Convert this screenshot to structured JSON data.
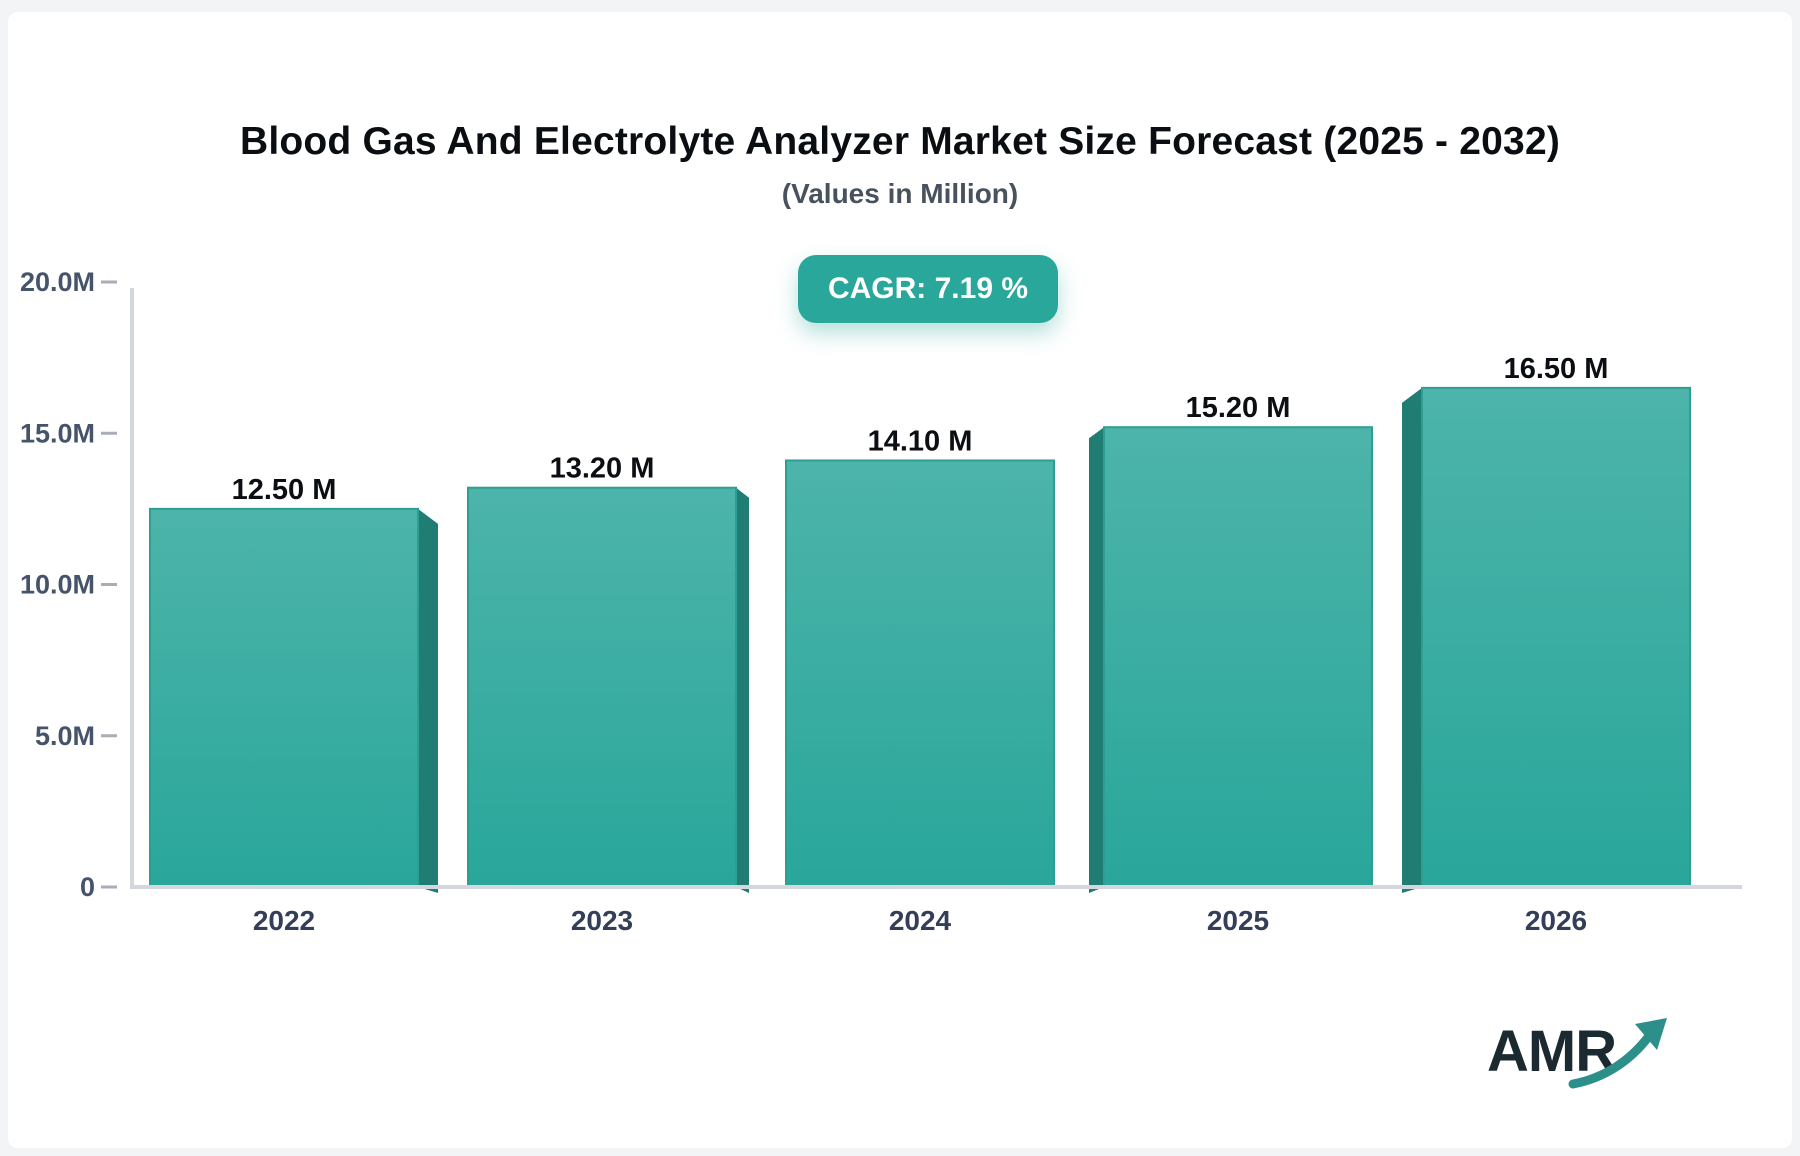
{
  "header": {
    "title": "Blood Gas And Electrolyte Analyzer Market Size Forecast (2025 - 2032)",
    "subtitle": "(Values in Million)"
  },
  "badge": {
    "label": "CAGR: 7.19 %"
  },
  "chart_data": {
    "type": "bar",
    "categories": [
      "2022",
      "2023",
      "2024",
      "2025",
      "2026"
    ],
    "values": [
      12.5,
      13.2,
      14.1,
      15.2,
      16.5
    ],
    "bar_labels": [
      "12.50 M",
      "13.20 M",
      "14.10 M",
      "15.20 M",
      "16.50 M"
    ],
    "title": "Blood Gas And Electrolyte Analyzer Market Size Forecast (2025 - 2032)",
    "subtitle": "(Values in Million)",
    "xlabel": "",
    "ylabel": "",
    "ylim": [
      0,
      20
    ],
    "yticks": {
      "values": [
        0,
        5,
        10,
        15,
        20
      ],
      "labels": [
        "0",
        "5.0M",
        "10.0M",
        "15.0M",
        "20.0M"
      ]
    },
    "grid": false,
    "legend": false,
    "style": "3d-extruded-bars, extrusion faces outward from center bar",
    "colors": {
      "bar_gradient_top": "#4db4aa",
      "bar_gradient_bottom": "#29a69a",
      "bar_edge": "#2f9e92",
      "bar_side": "#1f7d73",
      "axis_line": "#d4d7dd",
      "tick_dash": "#a7aeb8",
      "ytick_label": "#45536b",
      "xtick_label": "#343e58",
      "value_label": "#0b0e12",
      "badge_bg": "#2aa79b"
    }
  },
  "logo": {
    "text": "AMR",
    "text_color": "#1b2a31",
    "arrow_color": "#2d8f8a"
  }
}
